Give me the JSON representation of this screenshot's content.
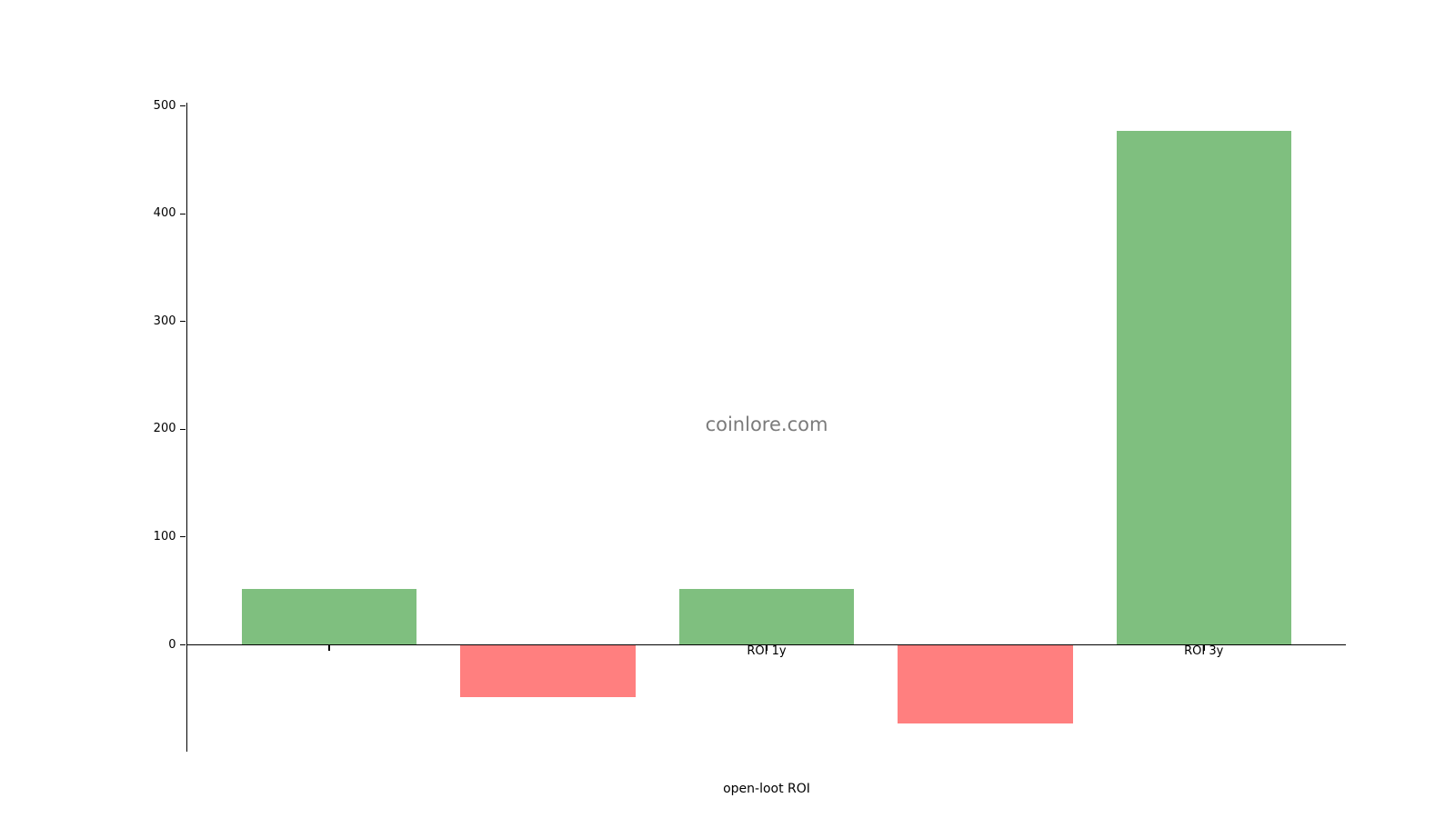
{
  "chart_data": {
    "type": "bar",
    "watermark": "coinlore.com",
    "xlabel": "open-loot ROI",
    "categories": [
      "",
      "",
      "ROI 1y",
      "",
      "ROI 3y"
    ],
    "values": [
      52,
      -48,
      52,
      -72,
      477
    ],
    "yticks": [
      0,
      100,
      200,
      300,
      400,
      500
    ],
    "ylim": [
      -99,
      503
    ],
    "positive_color": "#7fbf7f",
    "negative_color": "#ff7f7f",
    "axis_color": "#000000",
    "watermark_color": "#7b7b7b",
    "grid": false,
    "legend": null,
    "xticks_visible": [
      true,
      false,
      true,
      false,
      true
    ]
  }
}
